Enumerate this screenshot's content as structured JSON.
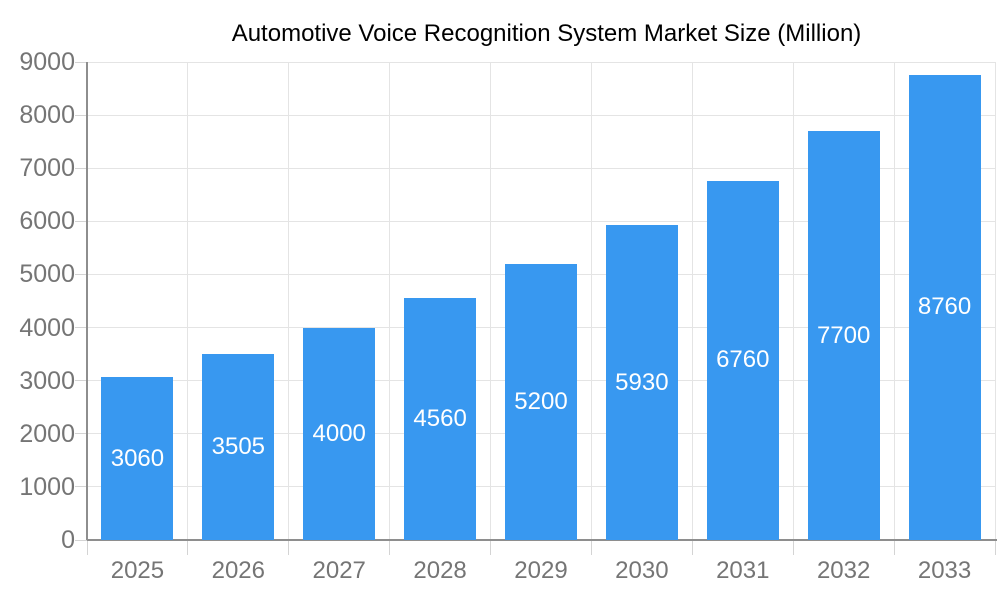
{
  "chart_data": {
    "type": "bar",
    "title": "Automotive Voice Recognition System Market Size (Million)",
    "legend": {
      "label": "Automotive Voice Recognition System Market Size (Million)",
      "position": "top-center"
    },
    "categories": [
      "2025",
      "2026",
      "2027",
      "2028",
      "2029",
      "2030",
      "2031",
      "2032",
      "2033"
    ],
    "series": [
      {
        "name": "Automotive Voice Recognition System Market Size (Million)",
        "values": [
          3060,
          3505,
          4000,
          4560,
          5200,
          5930,
          6760,
          7700,
          8760
        ]
      }
    ],
    "value_labels": [
      "3060",
      "3505",
      "4000",
      "4560",
      "5200",
      "5930",
      "6760",
      "7700",
      "8760"
    ],
    "xlabel": "",
    "ylabel": "",
    "ylim": [
      0,
      9000
    ],
    "ytick_step": 1000,
    "ytick_labels": [
      "0",
      "1000",
      "2000",
      "3000",
      "4000",
      "5000",
      "6000",
      "7000",
      "8000",
      "9000"
    ],
    "grid": true,
    "colors": {
      "bar": "#3898F0",
      "value_label": "#FFFFFF",
      "axis_text": "#757575",
      "grid_line": "#E4E4E4",
      "axis_line": "#8E8E8E",
      "tick": "#D4D4D4",
      "background": "#FFFFFF"
    }
  }
}
